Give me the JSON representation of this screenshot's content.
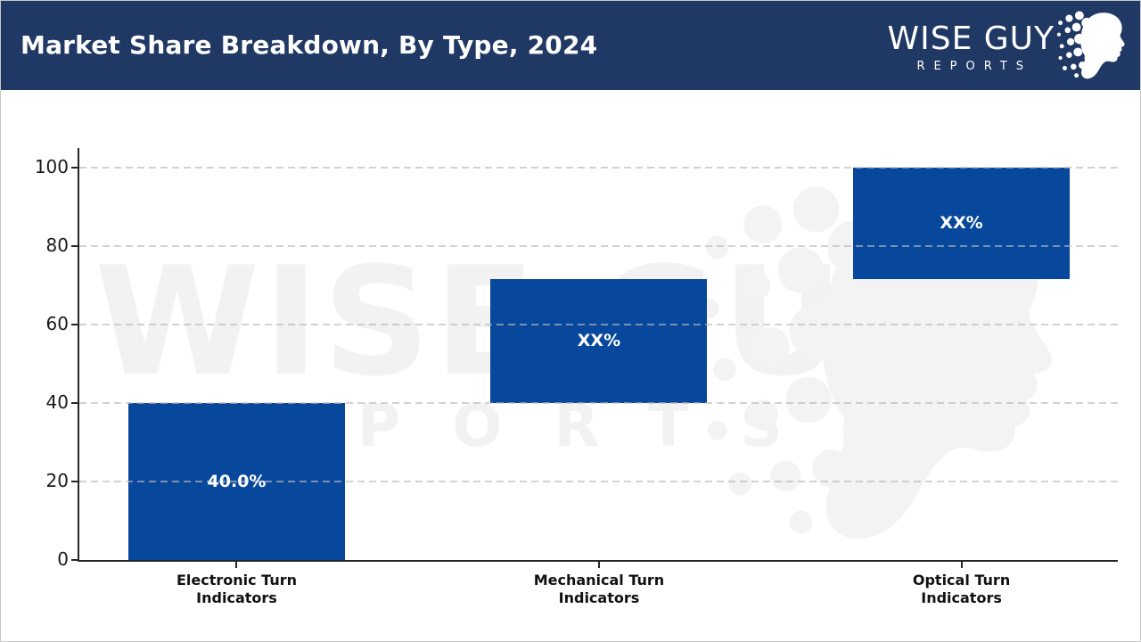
{
  "page": {
    "background": "#ffffff",
    "border_color": "#c9c9c9"
  },
  "header": {
    "background": "#203864",
    "title": "Market Share Breakdown, By Type, 2024",
    "logo": {
      "line1": "WISE GUY",
      "line2": "REPORTS",
      "face_icon": "dotted-head-profile"
    }
  },
  "watermark": {
    "line1": "WISE GUY",
    "line2": "REPORTS",
    "face_icon": "dotted-head-profile",
    "color": "#f2f2f2"
  },
  "chart_data": {
    "type": "bar",
    "subtype": "percentage-breakdown-floating-bars",
    "title": "Market Share Breakdown, By Type, 2024",
    "categories": [
      "Electronic Turn\nIndicators",
      "Mechanical Turn\nIndicators",
      "Optical Turn\nIndicators"
    ],
    "segments": [
      {
        "category": "Electronic Turn Indicators",
        "from": 0,
        "to": 40,
        "label": "40.0%"
      },
      {
        "category": "Mechanical Turn Indicators",
        "from": 40,
        "to": 71.7,
        "label": "XX%"
      },
      {
        "category": "Optical Turn Indicators",
        "from": 71.7,
        "to": 100,
        "label": "XX%"
      }
    ],
    "bar_color": "#07479c",
    "bar_label_color": "#ffffff",
    "yticks": [
      0,
      20,
      40,
      60,
      80,
      100
    ],
    "ylim": [
      0,
      105
    ],
    "xlabel": "",
    "ylabel": "",
    "grid": "horizontal-dashed",
    "gridline_color": "#c9c9c9",
    "legend": "none"
  }
}
